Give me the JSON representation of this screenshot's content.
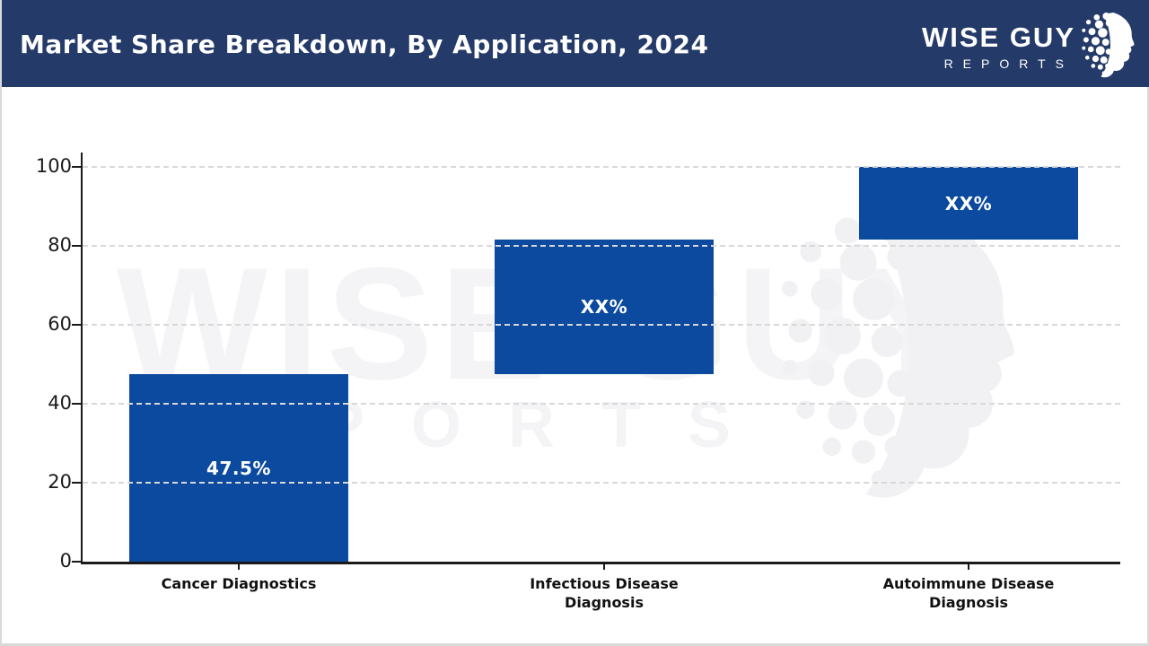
{
  "header": {
    "title": "Market Share Breakdown, By Application, 2024",
    "brand": {
      "name": "WISE GUY",
      "sub": "REPORTS"
    }
  },
  "watermark": {
    "name": "WISE GUY",
    "sub": "REPORTS"
  },
  "colors": {
    "header_bg": "#243b69",
    "bar": "#0b4a9e",
    "bar_label": "#ffffff",
    "grid": "#d8d8d8",
    "axis": "#1a1a1a",
    "watermark": "#f4f4f6"
  },
  "chart_data": {
    "type": "bar",
    "subtype": "waterfall",
    "title": "Market Share Breakdown, By Application, 2024",
    "categories": [
      "Cancer Diagnostics",
      "Infectious Disease\nDiagnosis",
      "Autoimmune Disease\nDiagnosis"
    ],
    "bars": [
      {
        "category": "Cancer Diagnostics",
        "start": 0,
        "end": 47.5,
        "label": "47.5%"
      },
      {
        "category": "Infectious Disease Diagnosis",
        "start": 47.5,
        "end": 81.5,
        "label": "XX%"
      },
      {
        "category": "Autoimmune Disease Diagnosis",
        "start": 81.5,
        "end": 100,
        "label": "XX%"
      }
    ],
    "ylim": [
      0,
      100
    ],
    "yticks": [
      0,
      20,
      40,
      60,
      80,
      100
    ],
    "grid": "horizontal-dashed",
    "legend": "none",
    "xlabel": "",
    "ylabel": ""
  }
}
